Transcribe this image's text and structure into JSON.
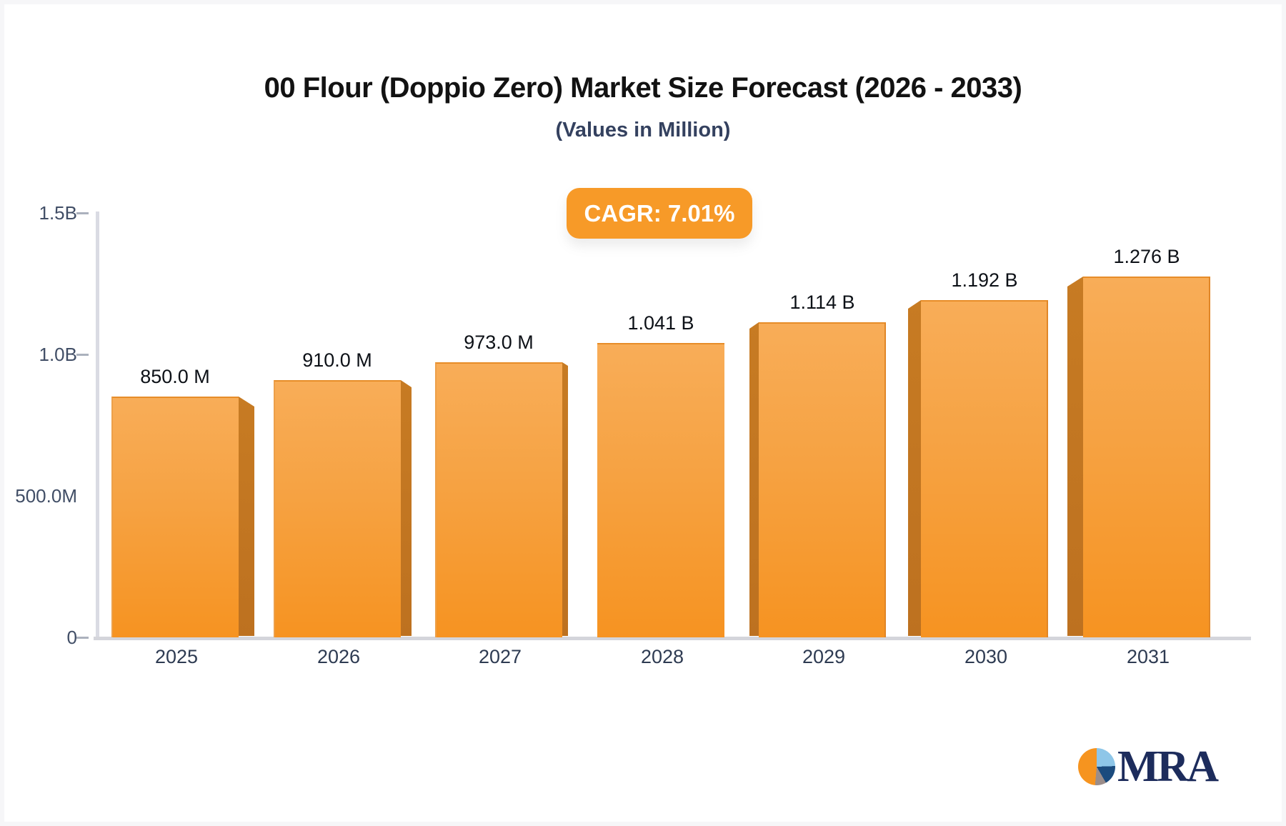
{
  "header": {
    "title": "00 Flour (Doppio Zero) Market Size Forecast (2026 - 2033)",
    "subtitle": "(Values in Million)",
    "cagr_badge": "CAGR: 7.01%"
  },
  "chart_data": {
    "type": "bar",
    "title": "00 Flour (Doppio Zero) Market Size Forecast (2026 - 2033)",
    "subtitle": "(Values in Million)",
    "cagr": "7.01%",
    "categories": [
      "2025",
      "2026",
      "2027",
      "2028",
      "2029",
      "2030",
      "2031"
    ],
    "values_millions": [
      850,
      910,
      973,
      1041,
      1114,
      1192,
      1276
    ],
    "value_labels": [
      "850.0 M",
      "910.0 M",
      "973.0 M",
      "1.041 B",
      "1.114 B",
      "1.192 B",
      "1.276 B"
    ],
    "ylim_millions": [
      0,
      1500
    ],
    "yticks": [
      {
        "value": 1500,
        "label": "1.5B",
        "dash": true
      },
      {
        "value": 1000,
        "label": "1.0B",
        "dash": true
      },
      {
        "value": 500,
        "label": "500.0M",
        "dash": false
      },
      {
        "value": 0,
        "label": "0",
        "dash": true
      }
    ],
    "grid": "off",
    "legend": "none",
    "bar_style": "3d-orange"
  },
  "colors": {
    "bar_face_top": "#f8ad58",
    "bar_face_bottom": "#f69321",
    "bar_side": "#c0741f",
    "bar_edge": "#e78d29",
    "badge_bg": "#f79a28",
    "badge_text": "#ffffff",
    "axis_line": "#dadbe3",
    "tick": "#abb1bd",
    "axis_label": "#414e66",
    "category_label": "#2e3b52",
    "value_label": "#0d1117",
    "title": "#121212",
    "subtitle": "#34415f",
    "logo_navy": "#1d2c5c",
    "logo_lightblue": "#8ec6e8",
    "logo_gray": "#9b8d8a",
    "logo_orange": "#f6941f"
  },
  "logo": {
    "text": "MRA",
    "icon": "pie-chart"
  }
}
